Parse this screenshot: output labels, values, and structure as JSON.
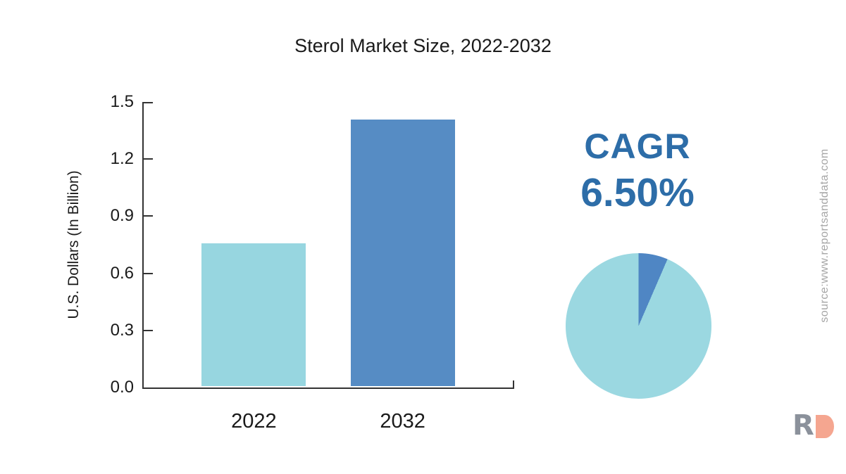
{
  "cagr": {
    "label": "CAGR",
    "value": "6.50%",
    "color": "#2d6da8"
  },
  "source_note": "source:www.reportsanddata.com",
  "logo": {
    "letter_r": "R",
    "r_color": "#8b919b",
    "d_color": "#f5a690"
  },
  "chart_data": [
    {
      "type": "bar",
      "title": "Sterol Market Size, 2022-2032",
      "categories": [
        "2022",
        "2032"
      ],
      "values": [
        0.75,
        1.4
      ],
      "bar_colors": [
        "#97d6e0",
        "#568cc4"
      ],
      "xlabel": "",
      "ylabel": "U.S. Dollars (In Billion)",
      "ylim": [
        0,
        1.5
      ],
      "yticks": [
        0.0,
        0.3,
        0.6,
        0.9,
        1.2,
        1.5
      ],
      "grid": false,
      "legend": "none"
    },
    {
      "type": "pie",
      "slices": [
        {
          "label": "CAGR 6.50%",
          "value": 6.5,
          "color": "#4f86c4"
        },
        {
          "label": "remainder",
          "value": 93.5,
          "color": "#9bd8e1"
        }
      ],
      "start_angle_deg": 0,
      "direction": "clockwise"
    }
  ]
}
